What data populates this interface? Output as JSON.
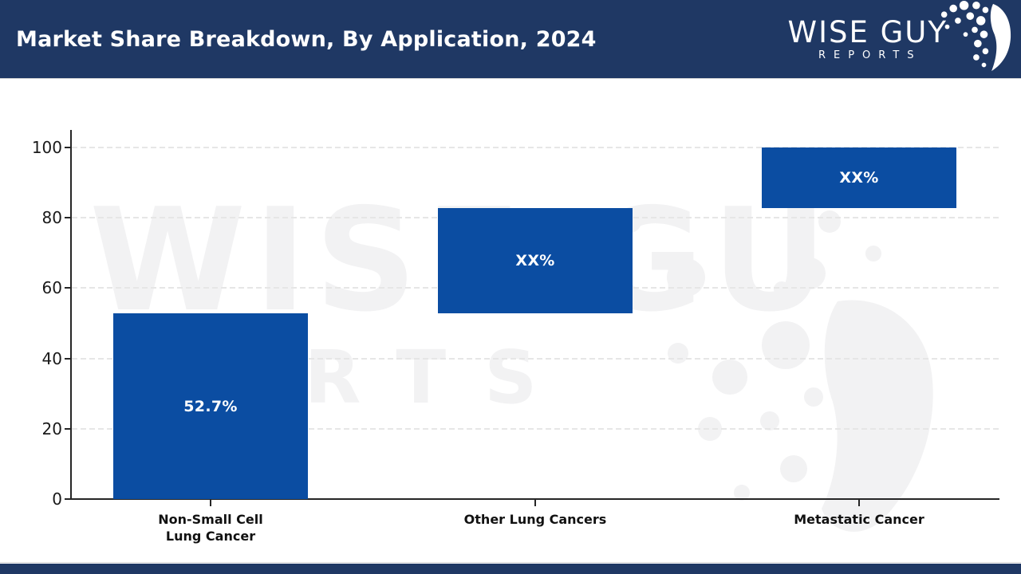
{
  "header": {
    "title": "Market Share Breakdown, By Application, 2024",
    "logo": {
      "line1": "WISE GUY",
      "line2": "REPORTS"
    }
  },
  "watermark": {
    "line1": "WISE GU",
    "line2": "PORTS"
  },
  "chart_data": {
    "type": "bar",
    "subtype": "waterfall-stacked-range",
    "title": "Market Share Breakdown, By Application, 2024",
    "categories": [
      "Non-Small Cell Lung Cancer",
      "Other Lung Cancers",
      "Metastatic Cancer"
    ],
    "bars": [
      {
        "category_lines": [
          "Non-Small Cell",
          "Lung Cancer"
        ],
        "start": 0,
        "end": 52.7,
        "label": "52.7%"
      },
      {
        "category_lines": [
          "Other Lung Cancers"
        ],
        "start": 52.7,
        "end": 82.7,
        "label": "XX%"
      },
      {
        "category_lines": [
          "Metastatic Cancer"
        ],
        "start": 82.7,
        "end": 100,
        "label": "XX%"
      }
    ],
    "yticks": [
      0,
      20,
      40,
      60,
      80,
      100
    ],
    "ylim": [
      0,
      105
    ],
    "xlabel": "",
    "ylabel": "",
    "grid": "horizontal-dashed",
    "legend": "none",
    "bar_color": "#0B4DA2",
    "bar_label_color": "#ffffff"
  },
  "colors": {
    "header_bg": "#1F3864",
    "footer_bg": "#1F3864",
    "bar": "#0B4DA2",
    "watermark": "#f2f2f3",
    "axis": "#262626",
    "gridline": "#e6e6e6"
  }
}
